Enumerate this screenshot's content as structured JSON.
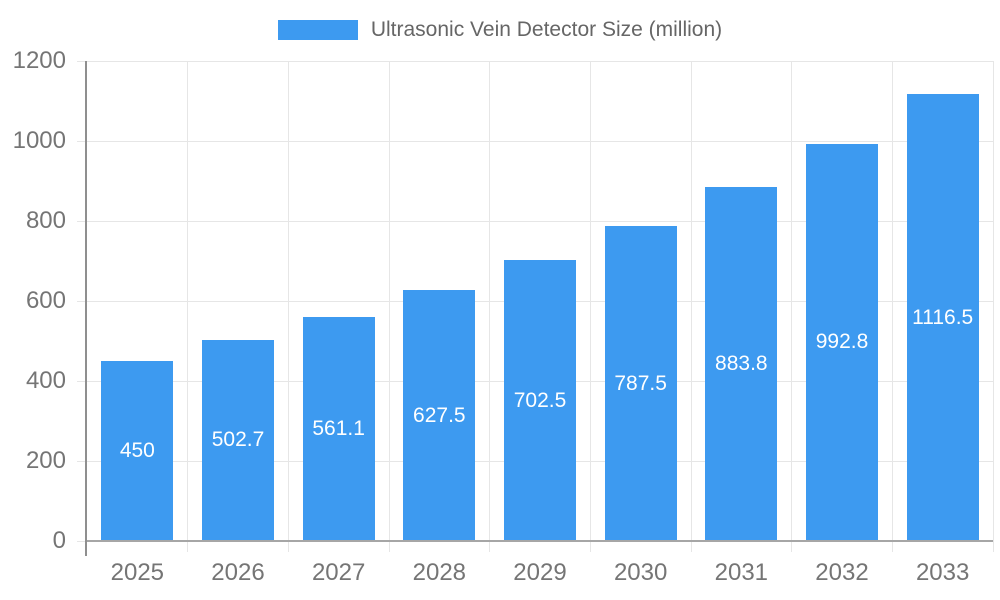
{
  "chart_data": {
    "type": "bar",
    "title": "Ultrasonic Vein Detector Size (million)",
    "legend": [
      "Ultrasonic Vein Detector Size (million)"
    ],
    "legend_position": "top",
    "categories": [
      "2025",
      "2026",
      "2027",
      "2028",
      "2029",
      "2030",
      "2031",
      "2032",
      "2033"
    ],
    "values": [
      450,
      502.7,
      561.1,
      627.5,
      702.5,
      787.5,
      883.8,
      992.8,
      1116.5
    ],
    "value_labels": [
      "450",
      "502.7",
      "561.1",
      "627.5",
      "702.5",
      "787.5",
      "883.8",
      "992.8",
      "1116.5"
    ],
    "xlabel": "",
    "ylabel": "",
    "ylim": [
      0,
      1200
    ],
    "yticks": [
      0,
      200,
      400,
      600,
      800,
      1000,
      1200
    ],
    "grid": true,
    "colors": {
      "bar": "#3D9AF0",
      "value_label": "#FFFFFF",
      "grid_line": "#E6E6E6",
      "x_axis_line": "#A6A6A6",
      "y_axis_line": "#8F8F8F",
      "tick_label": "#757575",
      "legend_text": "#666666",
      "background": "#FFFFFF"
    }
  }
}
